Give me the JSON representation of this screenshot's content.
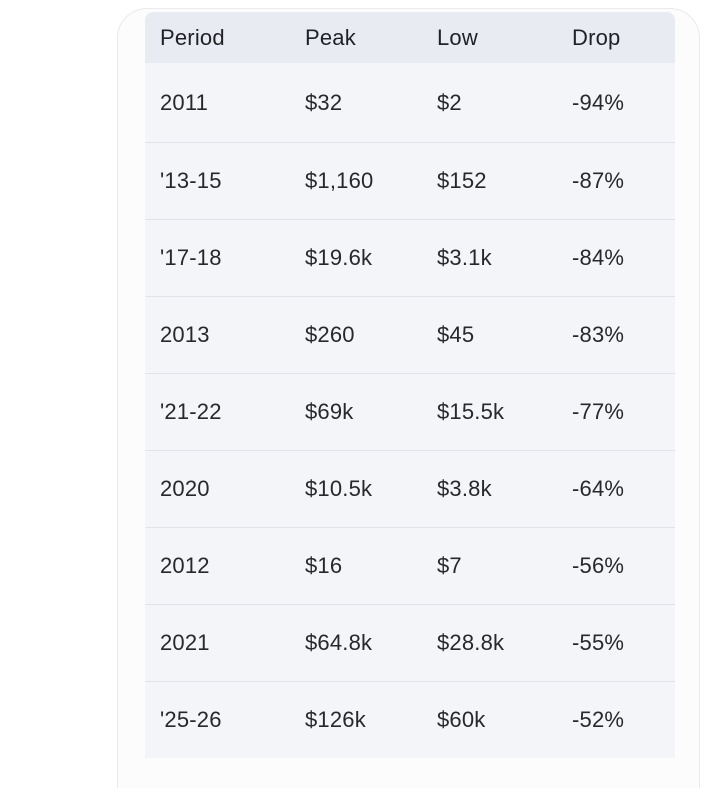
{
  "chart_data": {
    "type": "table",
    "columns": [
      "Period",
      "Peak",
      "Low",
      "Drop"
    ],
    "rows": [
      [
        "2011",
        "$32",
        "$2",
        "-94%"
      ],
      [
        "'13-15",
        "$1,160",
        "$152",
        "-87%"
      ],
      [
        "'17-18",
        "$19.6k",
        "$3.1k",
        "-84%"
      ],
      [
        "2013",
        "$260",
        "$45",
        "-83%"
      ],
      [
        "'21-22",
        "$69k",
        "$15.5k",
        "-77%"
      ],
      [
        "2020",
        "$10.5k",
        "$3.8k",
        "-64%"
      ],
      [
        "2012",
        "$16",
        "$7",
        "-56%"
      ],
      [
        "2021",
        "$64.8k",
        "$28.8k",
        "-55%"
      ],
      [
        "'25-26",
        "$126k",
        "$60k",
        "-52%"
      ]
    ]
  },
  "colors": {
    "header_background": "#e8ebf1",
    "row_background": "#f3f5f8",
    "separator": "#e0e3e9",
    "text": "#26282c",
    "card_background": "#fcfcfd",
    "card_border": "#e9eaee",
    "page_background": "#ffffff"
  }
}
